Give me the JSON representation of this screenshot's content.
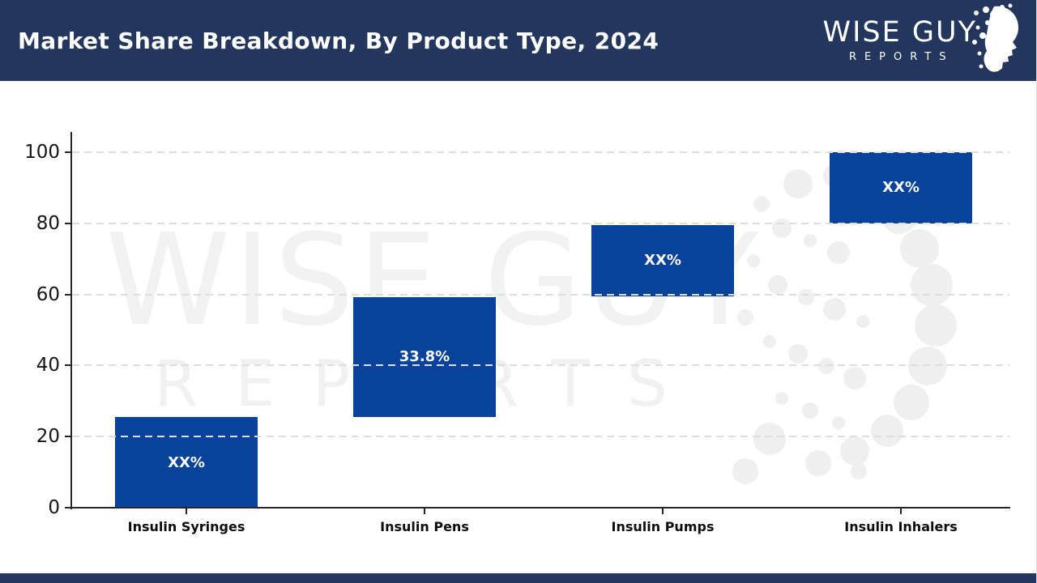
{
  "header": {
    "title": "Market Share Breakdown, By Product Type, 2024",
    "logo": {
      "name": "WISE GUY",
      "tagline": "REPORTS"
    }
  },
  "watermark": {
    "name": "WISE GUY",
    "tagline": "REPORTS"
  },
  "chart_data": {
    "type": "bar",
    "subtype": "floating-waterfall",
    "title": "Market Share Breakdown, By Product Type, 2024",
    "categories": [
      "Insulin Syringes",
      "Insulin Pens",
      "Insulin Pumps",
      "Insulin Inhalers"
    ],
    "bars": [
      {
        "category": "Insulin Syringes",
        "start": 0,
        "end": 25.5,
        "label": "XX%"
      },
      {
        "category": "Insulin Pens",
        "start": 25.5,
        "end": 59.3,
        "label": "33.8%"
      },
      {
        "category": "Insulin Pumps",
        "start": 59.5,
        "end": 79.5,
        "label": "XX%"
      },
      {
        "category": "Insulin Inhalers",
        "start": 80,
        "end": 100,
        "label": "XX%"
      }
    ],
    "xlabel": "",
    "ylabel": "",
    "yticks": [
      0,
      20,
      40,
      60,
      80,
      100
    ],
    "ylim": [
      0,
      106
    ],
    "grid": {
      "axis": "y",
      "style": "dashed",
      "drawn_above_bars": true
    },
    "legend": null,
    "colors": {
      "bar": "#08429a",
      "bar_label": "#ffffff",
      "axis": "#262626",
      "tick_label": "#151515",
      "gridline": "#dedede",
      "header_bg": "#22365E",
      "watermark": "#f1f1f1"
    }
  }
}
